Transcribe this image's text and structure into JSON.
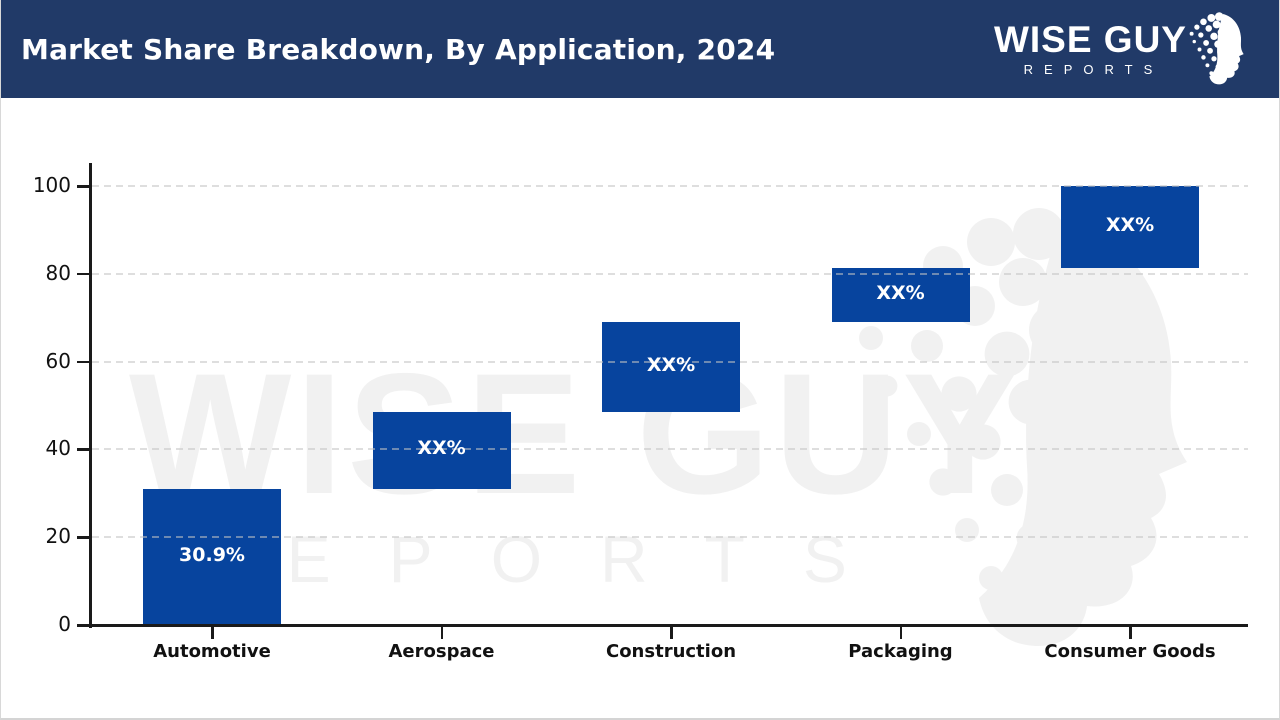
{
  "header": {
    "title": "Market Share Breakdown, By Application, 2024",
    "logo": {
      "name": "WISE GUY",
      "subtitle": "REPORTS"
    }
  },
  "watermark": {
    "line1": "WISE GUY",
    "line2": "REPORTS"
  },
  "colors": {
    "header_bg": "#213A68",
    "bar": "#07449E",
    "bar_label": "#FFFFFF",
    "axis": "#1A1A1A",
    "grid": "#E3E3E3",
    "watermark": "#F1F1F1"
  },
  "chart_data": {
    "type": "bar",
    "subtype": "waterfall",
    "title": "Market Share Breakdown, By Application, 2024",
    "categories": [
      "Automotive",
      "Aerospace",
      "Construction",
      "Packaging",
      "Consumer Goods"
    ],
    "segments": [
      {
        "category": "Automotive",
        "start": 0,
        "end": 30.9,
        "label": "30.9%"
      },
      {
        "category": "Aerospace",
        "start": 30.9,
        "end": 48.6,
        "label": "XX%"
      },
      {
        "category": "Construction",
        "start": 48.6,
        "end": 69.0,
        "label": "XX%"
      },
      {
        "category": "Packaging",
        "start": 69.0,
        "end": 81.4,
        "label": "XX%"
      },
      {
        "category": "Consumer Goods",
        "start": 81.4,
        "end": 100,
        "label": "XX%"
      }
    ],
    "y_ticks": [
      0,
      20,
      40,
      60,
      80,
      100
    ],
    "ylim": [
      0,
      100
    ],
    "xlabel": "",
    "ylabel": "",
    "grid": "horizontal dashed, drawn over bars",
    "legend": "none"
  }
}
